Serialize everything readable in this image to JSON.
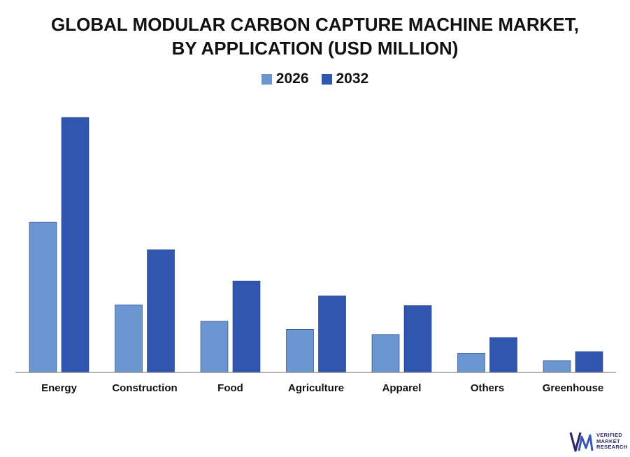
{
  "chart_data": {
    "type": "bar",
    "title": [
      "GLOBAL MODULAR CARBON CAPTURE MACHINE MARKET,",
      "BY APPLICATION (USD MILLION)"
    ],
    "categories": [
      "Energy",
      "Construction",
      "Food",
      "Agriculture",
      "Apparel",
      "Others",
      "Greenhouse"
    ],
    "series": [
      {
        "name": "2026",
        "color": "#6c96cf",
        "values": [
          202,
          91,
          69,
          58,
          51,
          26,
          16
        ]
      },
      {
        "name": "2032",
        "color": "#3056b0",
        "values": [
          343,
          165,
          123,
          103,
          90,
          47,
          28
        ]
      }
    ],
    "xlabel": "",
    "ylabel": "",
    "ylim": [
      0,
      360
    ],
    "grid": false,
    "legend_position": "top-center",
    "y_axis_visible": false
  },
  "logo": {
    "line1": "VERIFIED",
    "line2": "MARKET",
    "line3": "RESEARCH",
    "mark": "®",
    "color": "#2d2b6e"
  }
}
